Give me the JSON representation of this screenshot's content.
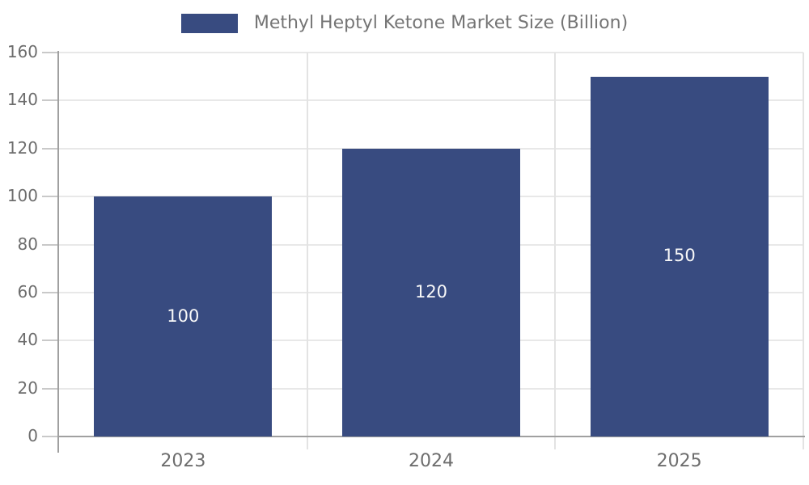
{
  "chart_data": {
    "type": "bar",
    "title": "",
    "categories": [
      "2023",
      "2024",
      "2025"
    ],
    "series": [
      {
        "name": "Methyl Heptyl Ketone Market Size (Billion)",
        "values": [
          100,
          120,
          150
        ]
      }
    ],
    "value_labels": [
      "100",
      "120",
      "150"
    ],
    "xlabel": "",
    "ylabel": "",
    "ylim": [
      0,
      160
    ],
    "ytick_step": 20,
    "yticks": [
      0,
      20,
      40,
      60,
      80,
      100,
      120,
      140,
      160
    ],
    "grid": true,
    "legend_position": "top-center",
    "colors": {
      "bar": "#384B80",
      "gridline": "#e8e8e8",
      "axis": "#a0a0a0",
      "separator": "#e3e3e3",
      "tick_dash": "#c9c9c9",
      "tick_label": "#6d6d6d",
      "x_label": "#6d6d6d",
      "legend_text": "#757575",
      "value_label": "#f8f8f8",
      "background": "#ffffff"
    }
  }
}
